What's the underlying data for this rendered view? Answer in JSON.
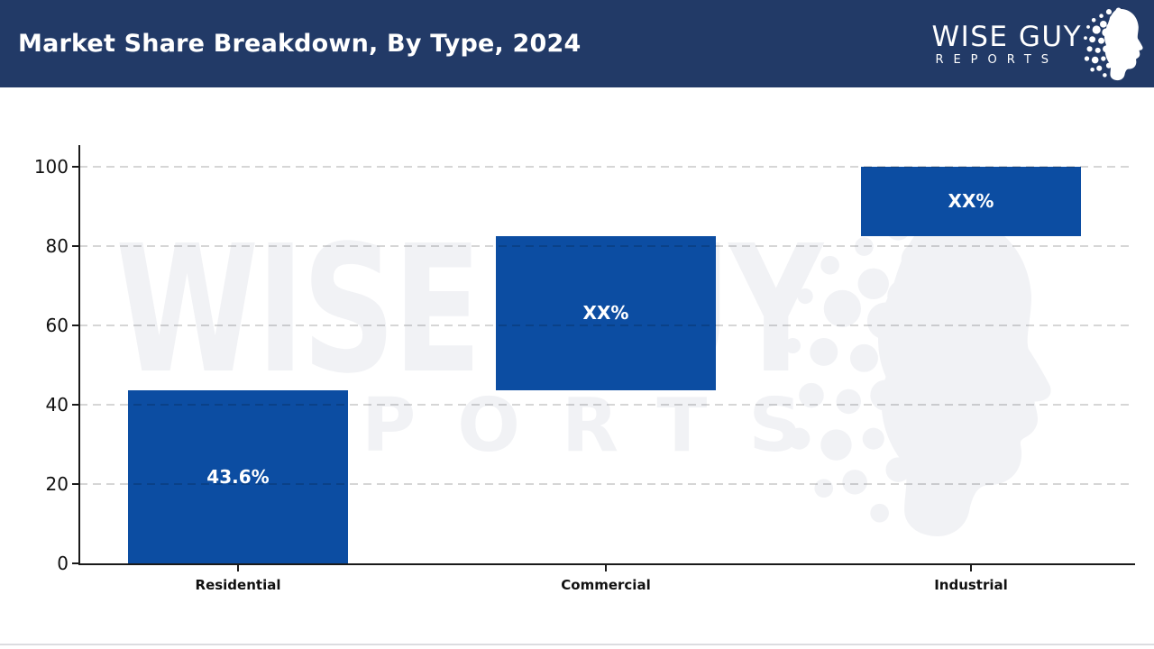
{
  "header": {
    "title": "Market Share Breakdown, By Type, 2024",
    "bg_color": "#223a67",
    "logo": {
      "wordmark": "WISE GUY",
      "subtext": "REPORTS",
      "face_icon": "dotted-face-profile-icon"
    }
  },
  "watermark": {
    "line1": "WISE GUY",
    "line2": "REPORTS"
  },
  "chart_data": {
    "type": "bar",
    "subtype": "waterfall",
    "title": "Market Share Breakdown, By Type, 2024",
    "categories": [
      "Residential",
      "Commercial",
      "Industrial"
    ],
    "bars": [
      {
        "category": "Residential",
        "start": 0,
        "end": 43.6,
        "label": "43.6%"
      },
      {
        "category": "Commercial",
        "start": 43.6,
        "end": 82.6,
        "label": "XX%"
      },
      {
        "category": "Industrial",
        "start": 82.6,
        "end": 100,
        "label": "XX%"
      }
    ],
    "xlabel": "",
    "ylabel": "",
    "ylim": [
      0,
      100
    ],
    "yticks": [
      0,
      20,
      40,
      60,
      80,
      100
    ],
    "grid": "horizontal-dashed",
    "grid_over_bars": true,
    "legend": "none",
    "bar_color": "#0c4da2",
    "axis_color": "#1a1a1a",
    "value_label_color": "#ffffff"
  }
}
